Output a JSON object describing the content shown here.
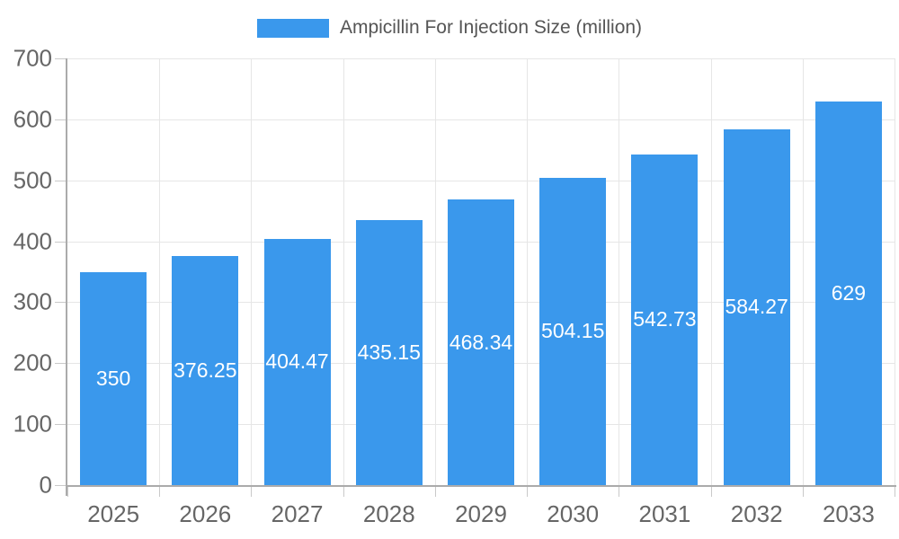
{
  "chart_data": {
    "type": "bar",
    "title": "Ampicillin For Injection Size (million)",
    "legend": {
      "position": "top",
      "entries": [
        "Ampicillin For Injection Size (million)"
      ]
    },
    "categories": [
      "2025",
      "2026",
      "2027",
      "2028",
      "2029",
      "2030",
      "2031",
      "2032",
      "2033"
    ],
    "values": [
      350,
      376.25,
      404.47,
      435.15,
      468.34,
      504.15,
      542.73,
      584.27,
      629
    ],
    "data_labels": [
      "350",
      "376.25",
      "404.47",
      "435.15",
      "468.34",
      "504.15",
      "542.73",
      "584.27",
      "629"
    ],
    "xlabel": "",
    "ylabel": "",
    "ylim": [
      0,
      700
    ],
    "yticks": [
      0,
      100,
      200,
      300,
      400,
      500,
      600,
      700
    ],
    "grid": "both"
  },
  "colors": {
    "bar": "#3A98EC",
    "gridline": "#E6E6E6",
    "axis_line": "#ABABAB",
    "tick_mark": "#C9C9C9",
    "tick_text": "#666666",
    "legend_text": "#555555",
    "bar_label_text": "#FFFFFF",
    "background": "#FFFFFF"
  }
}
